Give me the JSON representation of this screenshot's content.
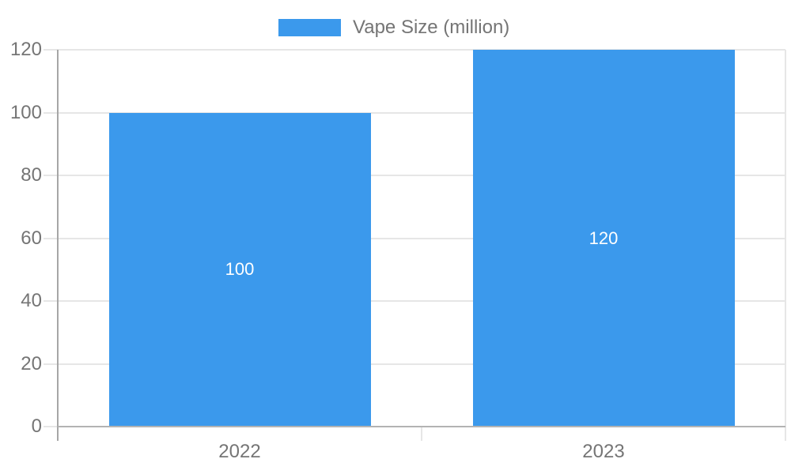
{
  "chart_data": {
    "type": "bar",
    "title": "",
    "legend": "Vape Size (million)",
    "legend_position": "top",
    "categories": [
      "2022",
      "2023"
    ],
    "series": [
      {
        "name": "Vape Size (million)",
        "values": [
          100,
          120
        ]
      }
    ],
    "bar_value_labels": [
      "100",
      "120"
    ],
    "xlabel": "",
    "ylabel": "",
    "ylim": [
      0,
      120
    ],
    "yticks": [
      0,
      20,
      40,
      60,
      80,
      100,
      120
    ],
    "ytick_labels": [
      "0",
      "20",
      "40",
      "60",
      "80",
      "100",
      "120"
    ],
    "grid": true,
    "colors": {
      "bar": "#3B99EC",
      "grid": "#e6e6e6",
      "y_axis_line": "#a6a6a6",
      "x_axis_line": "#b3b3b3",
      "axis_text": "#757575",
      "legend_text": "#757575",
      "bar_label_text": "#ffffff",
      "background": "#ffffff"
    }
  }
}
